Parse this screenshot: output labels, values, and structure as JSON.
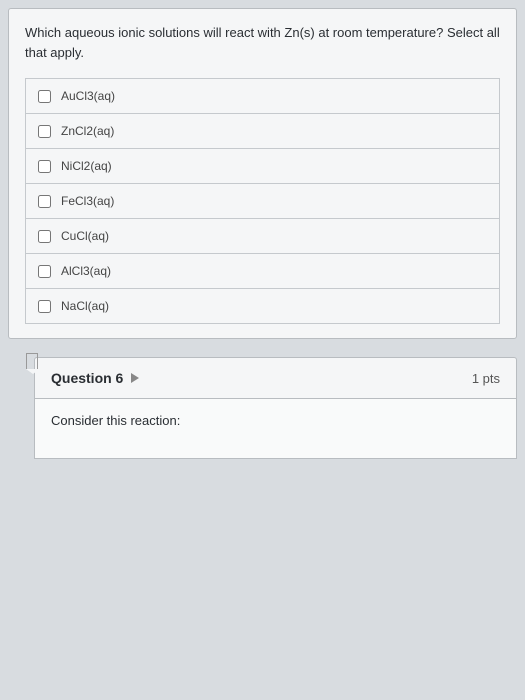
{
  "question5": {
    "prompt": "Which aqueous ionic solutions will react with Zn(s) at room temperature? Select all that apply.",
    "options": [
      {
        "label": "AuCl3(aq)"
      },
      {
        "label": "ZnCl2(aq)"
      },
      {
        "label": "NiCl2(aq)"
      },
      {
        "label": "FeCl3(aq)"
      },
      {
        "label": "CuCl(aq)"
      },
      {
        "label": "AlCl3(aq)"
      },
      {
        "label": "NaCl(aq)"
      }
    ]
  },
  "question6": {
    "title": "Question 6",
    "points": "1 pts",
    "body": "Consider this reaction:"
  }
}
